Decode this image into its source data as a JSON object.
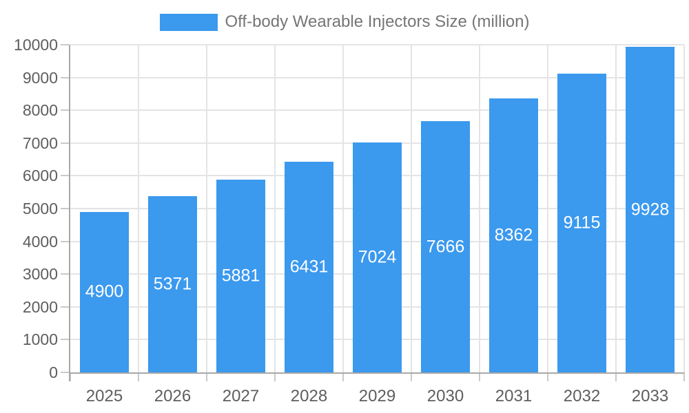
{
  "legend": {
    "label": "Off-body Wearable Injectors Size (million)"
  },
  "chart_data": {
    "type": "bar",
    "title": "Off-body Wearable Injectors Size (million)",
    "series_name": "Off-body Wearable Injectors Size (million)",
    "categories": [
      "2025",
      "2026",
      "2027",
      "2028",
      "2029",
      "2030",
      "2031",
      "2032",
      "2033"
    ],
    "values": [
      4900,
      5371,
      5881,
      6431,
      7024,
      7666,
      8362,
      9115,
      9928
    ],
    "ylim": [
      0,
      10000
    ],
    "ytick_step": 1000,
    "ytick_labels": [
      "0",
      "1000",
      "2000",
      "3000",
      "4000",
      "5000",
      "6000",
      "7000",
      "8000",
      "9000",
      "10000"
    ],
    "grid": true,
    "legend_position": "top-center",
    "colors": {
      "bar": "#3b99ee",
      "bar_value_text": "#ffffff",
      "axis_text": "#5e5e5e",
      "legend_text": "#757575",
      "gridline": "#e4e4e4",
      "axis_line": "#a8a8a8",
      "tick": "#c9c9c9",
      "background": "#ffffff"
    }
  }
}
